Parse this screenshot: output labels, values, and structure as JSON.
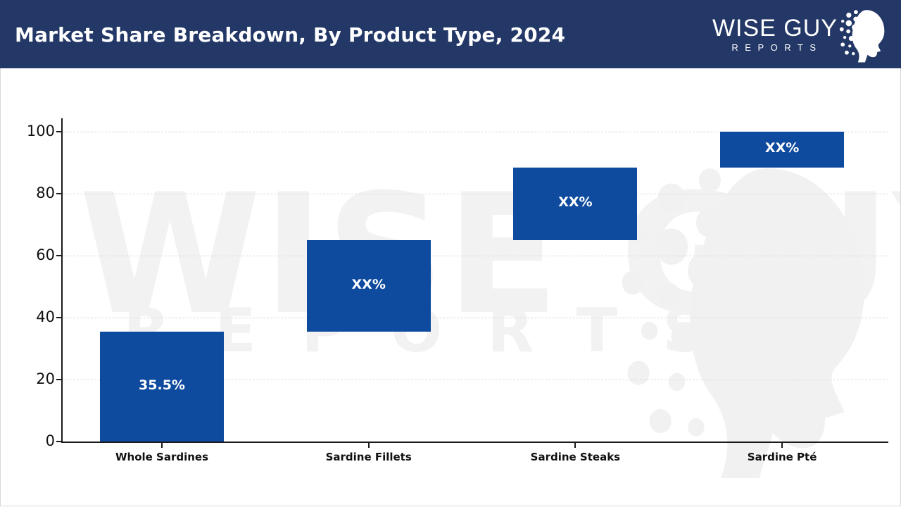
{
  "header": {
    "title": "Market Share Breakdown, By Product Type, 2024",
    "bg_color": "#233866",
    "logo": {
      "line1": "WISE GUY",
      "line2": "REPORTS"
    }
  },
  "watermark": {
    "line1": "WISE GUY",
    "line2": "REPORTS",
    "color": "#f2f2f2"
  },
  "chart_data": {
    "type": "bar",
    "variant": "waterfall",
    "title": "Market Share Breakdown, By Product Type, 2024",
    "categories": [
      "Whole Sardines",
      "Sardine Fillets",
      "Sardine Steaks",
      "Sardine Pté"
    ],
    "segments": [
      {
        "category": "Whole Sardines",
        "start": 0,
        "end": 35.5,
        "label": "35.5%"
      },
      {
        "category": "Sardine Fillets",
        "start": 35.5,
        "end": 65,
        "label": "XX%"
      },
      {
        "category": "Sardine Steaks",
        "start": 65,
        "end": 88.5,
        "label": "XX%"
      },
      {
        "category": "Sardine Pté",
        "start": 88.5,
        "end": 100,
        "label": "XX%"
      }
    ],
    "xlabel": "",
    "ylabel": "",
    "ylim": [
      0,
      104
    ],
    "yticks": [
      0,
      20,
      40,
      60,
      80,
      100
    ],
    "grid": "horizontal-dashed",
    "legend": "none",
    "bar_color": "#0e4a9e",
    "bar_label_color": "#ffffff",
    "axis_color": "#1a1a1a",
    "gridline_color": "#dcdcdc"
  }
}
